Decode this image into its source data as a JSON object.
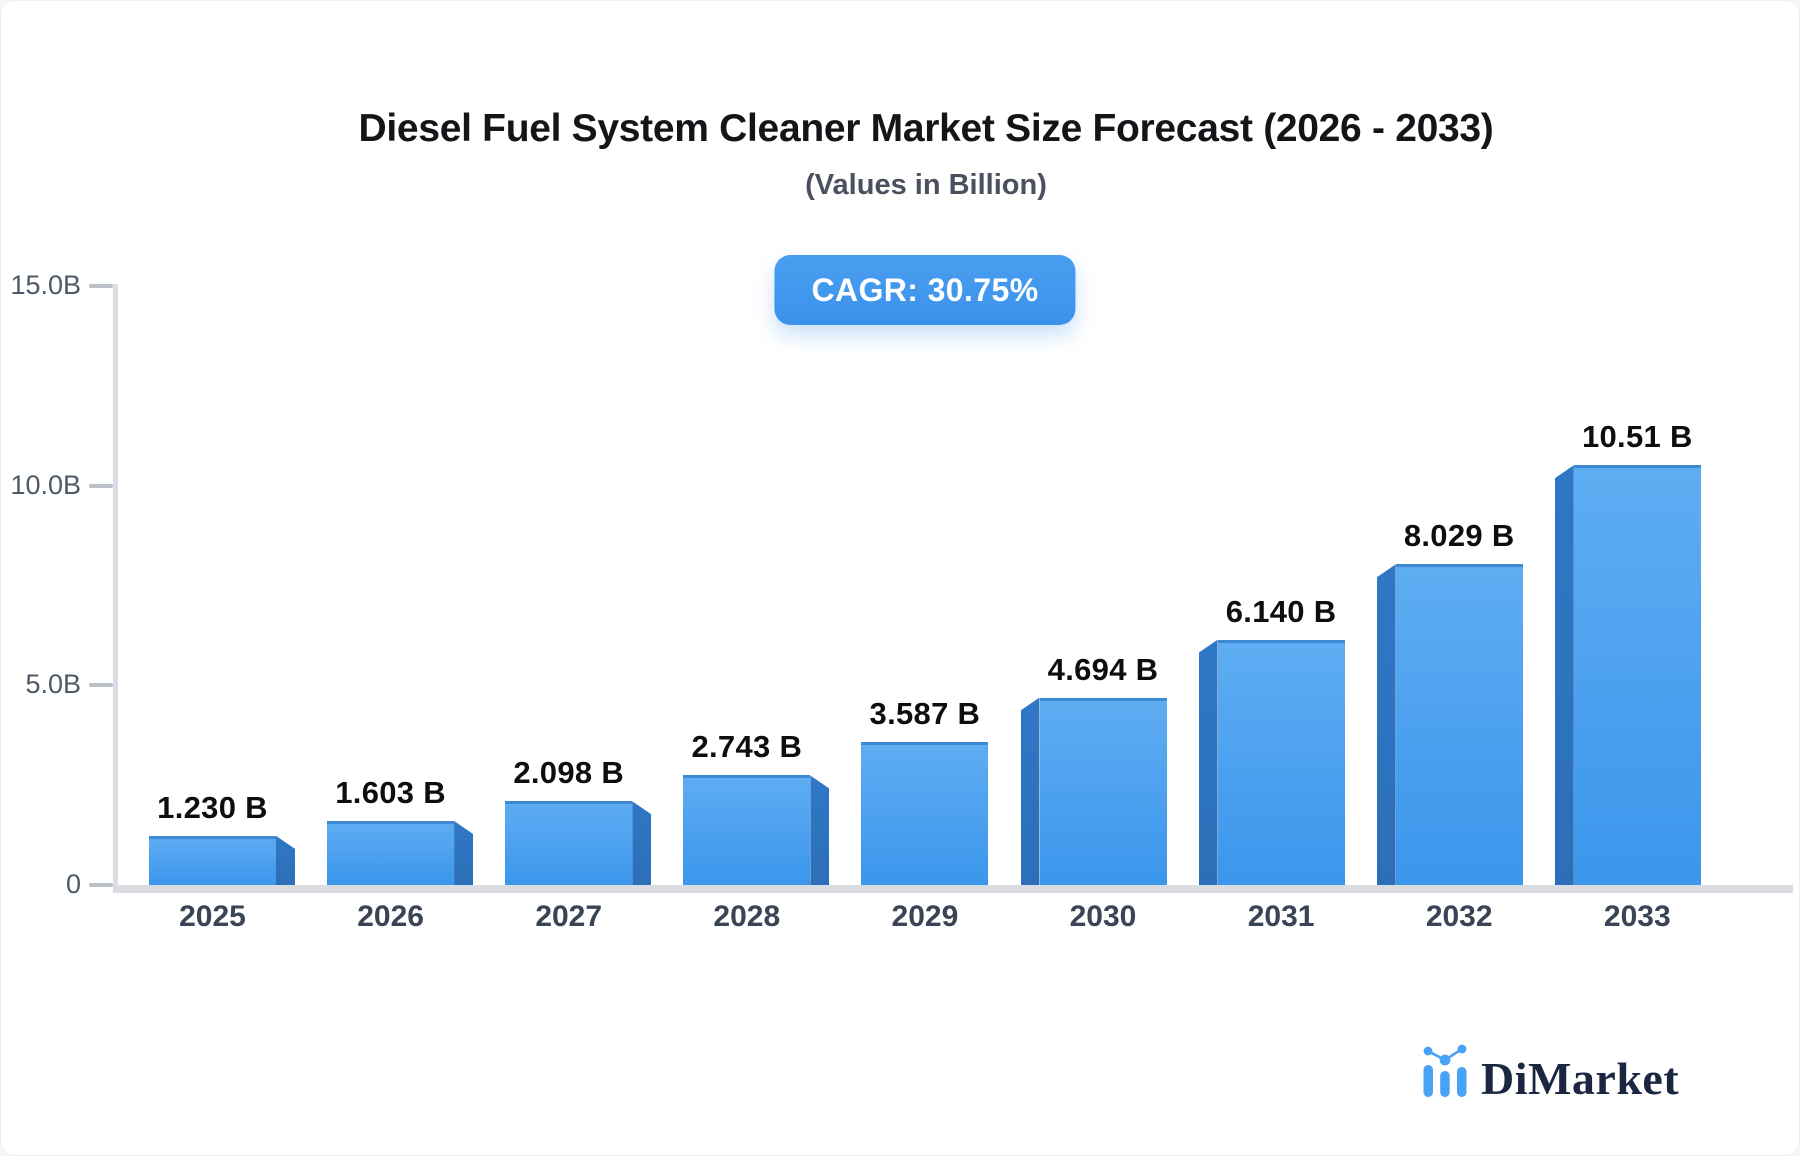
{
  "header": {
    "title": "Diesel Fuel System Cleaner Market Size Forecast (2026 - 2033)",
    "subtitle": "(Values in Billion)",
    "cagr_label": "CAGR: 30.75%"
  },
  "brand": {
    "name": "DiMarket",
    "icon": "bar-chart-logo-icon"
  },
  "colors": {
    "badge_blue_top": "#4a9ef1",
    "badge_blue_bottom": "#3a92e9",
    "bar_face_top": "#5fadf2",
    "bar_face_bottom": "#3b96ec",
    "bar_face_topline": "#3d89d3",
    "bar_side_top": "#2f77c6",
    "bar_side_bottom": "#2c6fb8",
    "axis_gray": "#d9dce1",
    "logo_navy": "#1b2740",
    "logo_blue": "#4aa2f4"
  },
  "chart_data": {
    "type": "bar",
    "title": "Diesel Fuel System Cleaner Market Size Forecast (2026 - 2033)",
    "subtitle": "(Values in Billion)",
    "xlabel": "",
    "ylabel": "",
    "ylim": [
      0,
      15
    ],
    "grid": false,
    "legend": "none",
    "categories": [
      "2025",
      "2026",
      "2027",
      "2028",
      "2029",
      "2030",
      "2031",
      "2032",
      "2033"
    ],
    "values": [
      1.23,
      1.603,
      2.098,
      2.743,
      3.587,
      4.694,
      6.14,
      8.029,
      10.51
    ],
    "value_labels": [
      "1.230 B",
      "1.603 B",
      "2.098 B",
      "2.743 B",
      "3.587 B",
      "4.694 B",
      "6.140 B",
      "8.029 B",
      "10.51 B"
    ],
    "y_ticks": [
      {
        "label": "15.0B",
        "value": 15
      },
      {
        "label": "10.0B",
        "value": 10
      },
      {
        "label": "5.0B",
        "value": 5
      },
      {
        "label": "0",
        "value": 0
      }
    ]
  }
}
